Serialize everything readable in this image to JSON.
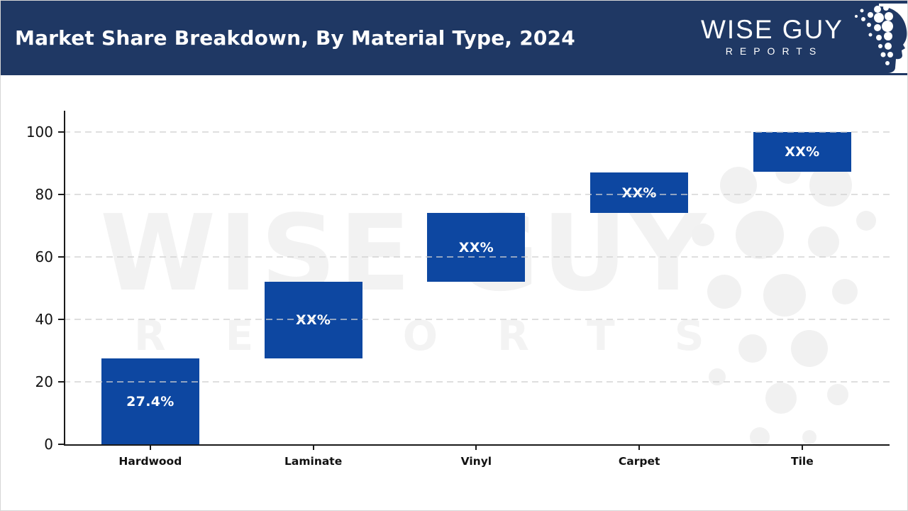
{
  "header": {
    "title": "Market Share Breakdown, By Material Type, 2024",
    "bg_color": "#1f3864",
    "logo": {
      "line1": "WISE GUY",
      "line2": "REPORTS"
    }
  },
  "watermark": {
    "line1": "WISE GUY",
    "line2": "REPORTS"
  },
  "chart_data": {
    "type": "bar",
    "subtype": "waterfall",
    "title": "Market Share Breakdown, By Material Type, 2024",
    "categories": [
      "Hardwood",
      "Laminate",
      "Vinyl",
      "Carpet",
      "Tile"
    ],
    "segments": [
      {
        "category": "Hardwood",
        "start": 0,
        "end": 27.4,
        "label": "27.4%"
      },
      {
        "category": "Laminate",
        "start": 27.4,
        "end": 52.0,
        "label": "XX%"
      },
      {
        "category": "Vinyl",
        "start": 52.0,
        "end": 74.0,
        "label": "XX%"
      },
      {
        "category": "Carpet",
        "start": 74.0,
        "end": 87.0,
        "label": "XX%"
      },
      {
        "category": "Tile",
        "start": 87.3,
        "end": 100.0,
        "label": "XX%"
      }
    ],
    "yticks": [
      0,
      20,
      40,
      60,
      80,
      100
    ],
    "ylim": [
      0,
      107
    ],
    "xlabel": "",
    "ylabel": "",
    "bar_color": "#0d47a1",
    "grid": true,
    "grid_style": "dashed",
    "legend": "none"
  }
}
